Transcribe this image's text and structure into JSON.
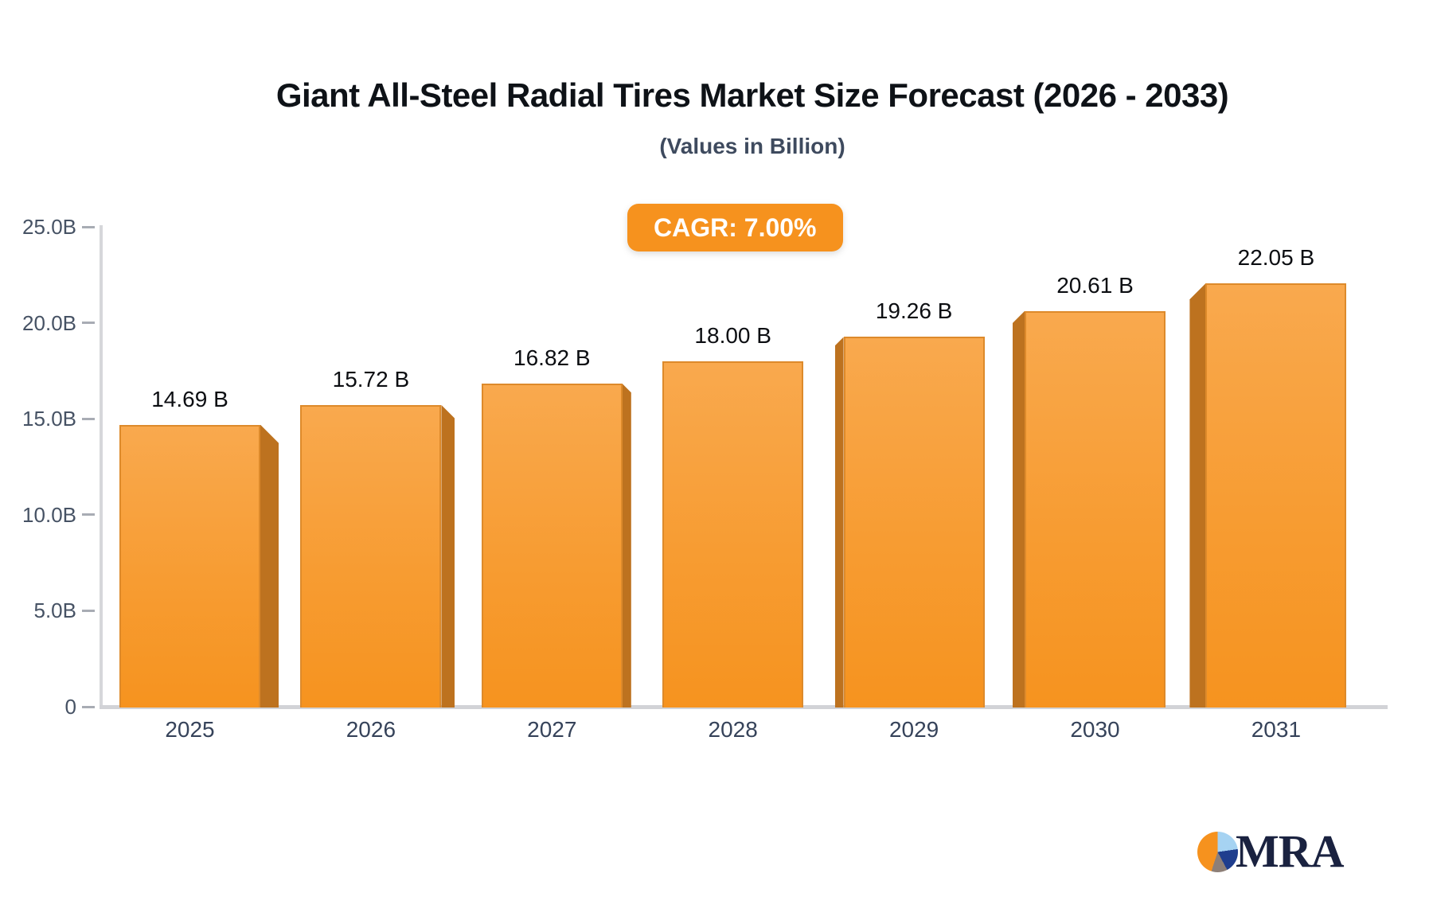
{
  "header": {
    "title": "Giant All-Steel Radial Tires Market Size Forecast (2026 - 2033)",
    "subtitle": "(Values in Billion)"
  },
  "badge": {
    "label": "CAGR: 7.00%",
    "bg_color": "#f6921e",
    "text_color": "#ffffff"
  },
  "chart_data": {
    "type": "bar",
    "title": "Giant All-Steel Radial Tires Market Size Forecast (2026 - 2033)",
    "subtitle": "(Values in Billion)",
    "annotation": "CAGR: 7.00%",
    "categories": [
      "2025",
      "2026",
      "2027",
      "2028",
      "2029",
      "2030",
      "2031"
    ],
    "values": [
      14.69,
      15.72,
      16.82,
      18.0,
      19.26,
      20.61,
      22.05
    ],
    "value_labels": [
      "14.69 B",
      "15.72 B",
      "16.82 B",
      "18.00 B",
      "19.26 B",
      "20.61 B",
      "22.05 B"
    ],
    "xlabel": "",
    "ylabel": "",
    "ylim": [
      0,
      25
    ],
    "y_ticks": [
      {
        "label": "25.0B",
        "value": 25
      },
      {
        "label": "20.0B",
        "value": 20
      },
      {
        "label": "15.0B",
        "value": 15
      },
      {
        "label": "10.0B",
        "value": 10
      },
      {
        "label": "5.0B",
        "value": 5
      },
      {
        "label": "0",
        "value": 0
      }
    ],
    "grid": false,
    "legend": false,
    "bar_color_top": "#f9a94e",
    "bar_color_bottom": "#f6931f",
    "bar_side_color": "#bd721f",
    "axis_color": "#d6d7da"
  },
  "logo": {
    "text": "MRA",
    "pie_colors": [
      "#f6921e",
      "#a6d3f2",
      "#1f3e8e",
      "#8d7f77"
    ]
  }
}
